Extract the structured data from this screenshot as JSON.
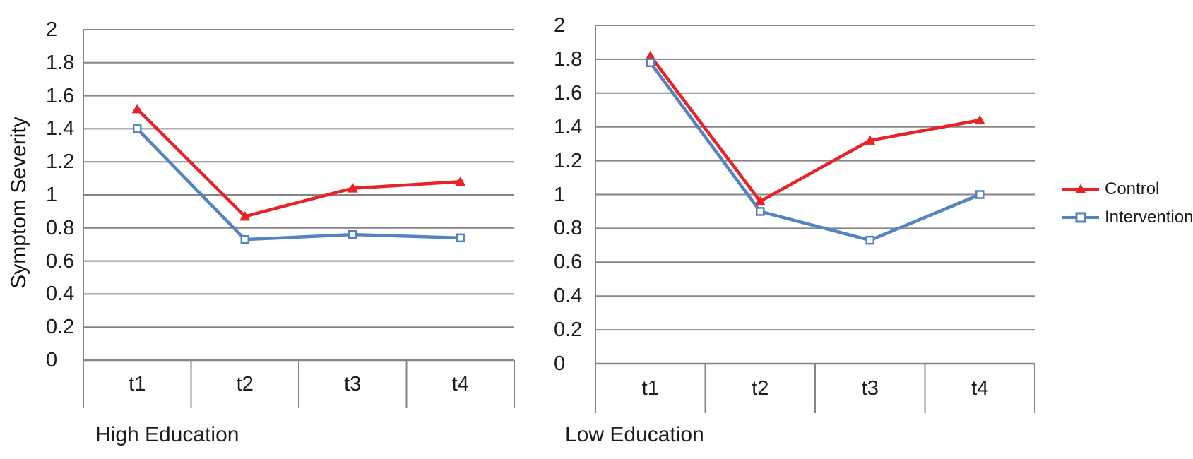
{
  "figure": {
    "y_axis_title": "Symptom Severity",
    "background_color": "#ffffff",
    "text_color": "#1c1c1c",
    "grid_color": "#858585",
    "legend_position": "right",
    "legend": [
      {
        "label": "Control",
        "color": "#e82327",
        "marker": "triangle-filled"
      },
      {
        "label": "Intervention",
        "color": "#5383c0",
        "marker": "square-open"
      }
    ]
  },
  "chart_data": [
    {
      "type": "line",
      "title": "High Education",
      "categories": [
        "t1",
        "t2",
        "t3",
        "t4"
      ],
      "series": [
        {
          "name": "Control",
          "color": "#e82327",
          "marker": "triangle-filled",
          "values": [
            1.52,
            0.87,
            1.04,
            1.08
          ]
        },
        {
          "name": "Intervention",
          "color": "#5383c0",
          "marker": "square-open",
          "values": [
            1.4,
            0.73,
            0.76,
            0.74
          ]
        }
      ],
      "ylabel": "Symptom Severity",
      "ylim": [
        0,
        2
      ],
      "ytick_step": 0.2,
      "ytick_labels": [
        "0",
        "0.2",
        "0.4",
        "0.6",
        "0.8",
        "1",
        "1.2",
        "1.4",
        "1.6",
        "1.8",
        "2"
      ],
      "grid": true
    },
    {
      "type": "line",
      "title": "Low Education",
      "categories": [
        "t1",
        "t2",
        "t3",
        "t4"
      ],
      "series": [
        {
          "name": "Control",
          "color": "#e82327",
          "marker": "triangle-filled",
          "values": [
            1.82,
            0.96,
            1.32,
            1.44
          ]
        },
        {
          "name": "Intervention",
          "color": "#5383c0",
          "marker": "square-open",
          "values": [
            1.78,
            0.9,
            0.73,
            1.0
          ]
        }
      ],
      "ylabel": "",
      "ylim": [
        0,
        2
      ],
      "ytick_step": 0.2,
      "ytick_labels": [
        "0",
        "0.2",
        "0.4",
        "0.6",
        "0.8",
        "1",
        "1.2",
        "1.4",
        "1.6",
        "1.8",
        "2"
      ],
      "grid": true
    }
  ]
}
